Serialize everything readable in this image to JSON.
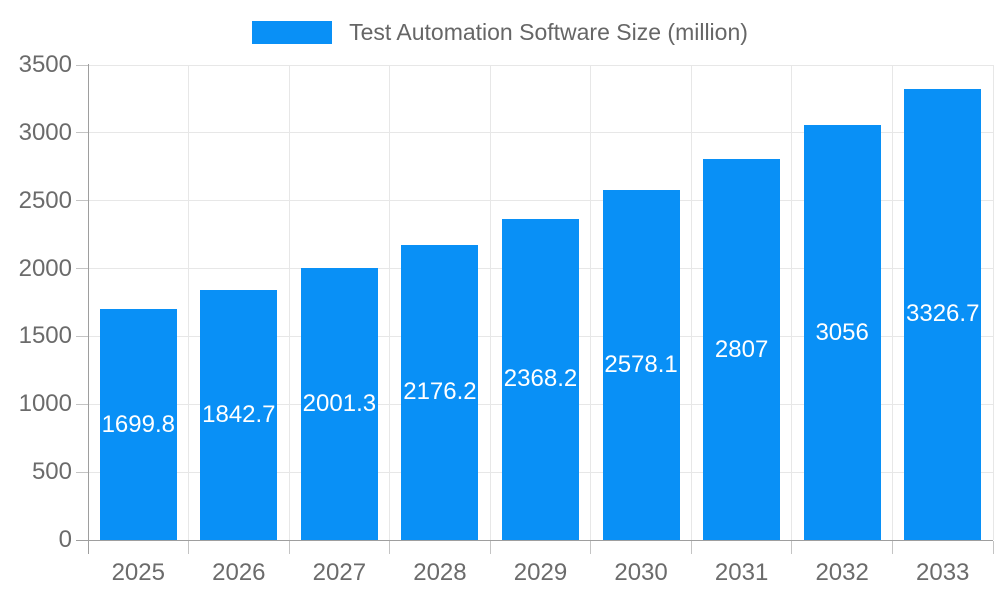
{
  "legend": {
    "label": "Test Automation Software Size (million)"
  },
  "colors": {
    "bar": "#0990f6",
    "grid": "#e7e7e7",
    "axis": "#9e9e9e",
    "tick": "#c4c4c4",
    "axis_label": "#6b6b6b",
    "legend_text": "#666666",
    "bar_label": "#ffffff",
    "background": "#ffffff"
  },
  "chart_data": {
    "type": "bar",
    "title": "Test Automation Software Size (million)",
    "categories": [
      "2025",
      "2026",
      "2027",
      "2028",
      "2029",
      "2030",
      "2031",
      "2032",
      "2033"
    ],
    "values": [
      1699.8,
      1842.7,
      2001.3,
      2176.2,
      2368.2,
      2578.1,
      2807,
      3056,
      3326.7
    ],
    "value_labels": [
      "1699.8",
      "1842.7",
      "2001.3",
      "2176.2",
      "2368.2",
      "2578.1",
      "2807",
      "3056",
      "3326.7"
    ],
    "xlabel": "",
    "ylabel": "",
    "ylim": [
      0,
      3500
    ],
    "yticks": [
      0,
      500,
      1000,
      1500,
      2000,
      2500,
      3000,
      3500
    ],
    "grid": true,
    "legend_position": "top",
    "value_label_position": "center-inside",
    "series_name": "Test Automation Software Size (million)"
  }
}
